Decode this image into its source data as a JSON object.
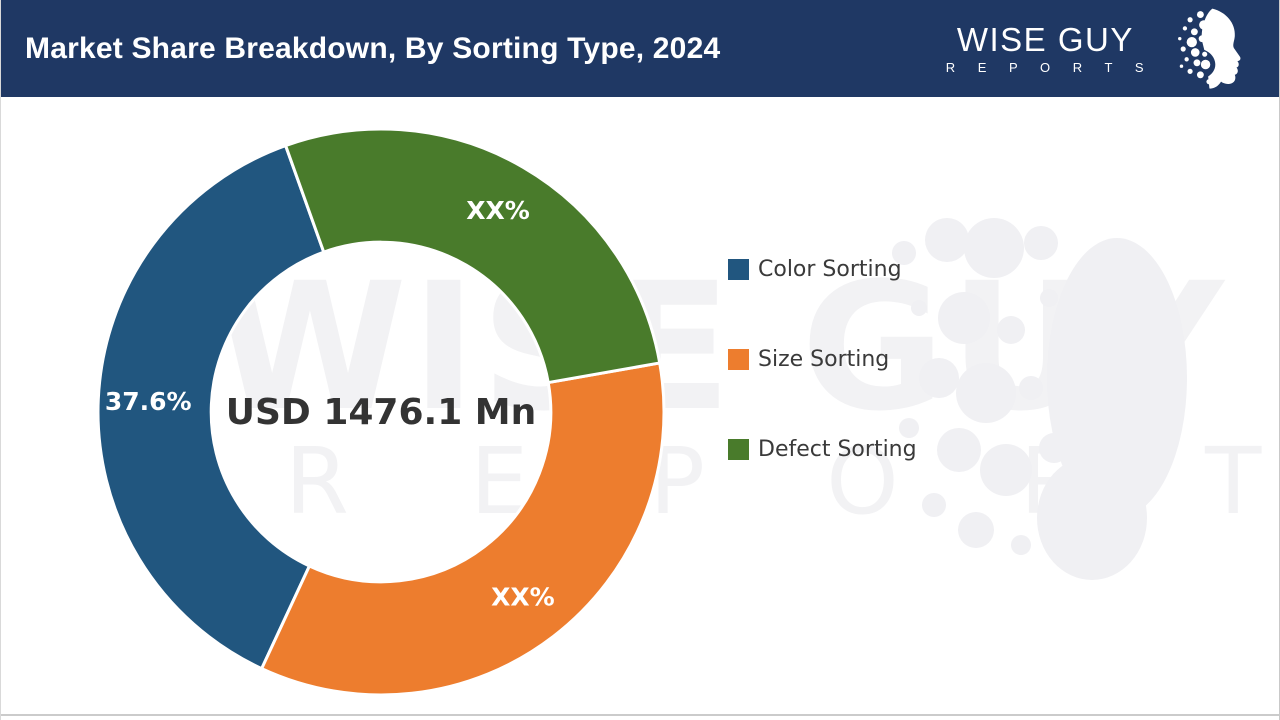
{
  "header": {
    "title": "Market Share Breakdown, By Sorting Type, 2024",
    "logo": {
      "primary": "WISE GUY",
      "secondary": "R E P O R T S"
    }
  },
  "watermark": {
    "primary": "WISE GUY",
    "secondary": "R E P O R T S"
  },
  "chart_data": {
    "type": "pie",
    "subtype": "donut",
    "title": "Market Share Breakdown, By Sorting Type, 2024",
    "center_label": "USD 1476.1 Mn",
    "unit": "percent",
    "start_angle_deg": 109.7,
    "direction": "counterclockwise",
    "inner_radius_ratio": 0.6,
    "legend_position": "right",
    "grid": false,
    "segments": [
      {
        "name": "Color Sorting",
        "value_pct": 37.6,
        "slice_label": "37.6%",
        "color": "#21567F"
      },
      {
        "name": "Size Sorting",
        "value_pct": 34.7,
        "slice_label": "XX%",
        "color": "#ED7D2E"
      },
      {
        "name": "Defect Sorting",
        "value_pct": 27.7,
        "slice_label": "XX%",
        "color": "#497B2B"
      }
    ]
  },
  "colors": {
    "header_bg": "#1F3864",
    "slice_label_text": "#FFFFFF",
    "center_label_text": "#333333",
    "legend_text": "#3A3A3A",
    "watermark": "#F2F2F4"
  }
}
